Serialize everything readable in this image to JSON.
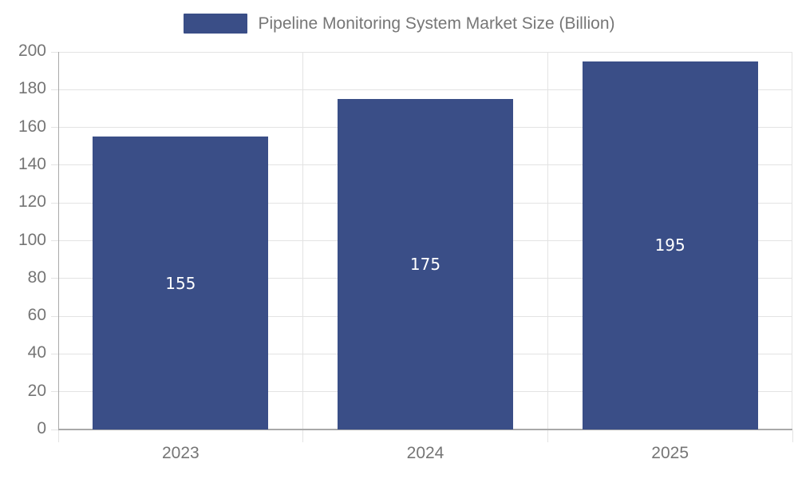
{
  "legend": {
    "label": "Pipeline Monitoring System Market Size (Billion)"
  },
  "chart_data": {
    "type": "bar",
    "title": "Pipeline Monitoring System Market Size (Billion)",
    "categories": [
      "2023",
      "2024",
      "2025"
    ],
    "values": [
      155,
      175,
      195
    ],
    "xlabel": "",
    "ylabel": "",
    "ylim": [
      0,
      200
    ],
    "ytick_step": 20,
    "yticks": [
      0,
      20,
      40,
      60,
      80,
      100,
      120,
      140,
      160,
      180,
      200
    ],
    "grid": true,
    "legend_position": "top-center",
    "value_labels_inside_bars": true,
    "colors": {
      "bar": "#3A4E87",
      "value_label": "#FFFFFF",
      "legend_text": "#767676",
      "tick_label": "#757575",
      "axis_line": "#A9A9A9",
      "grid_line": "#E3E3E3",
      "background": "#FFFFFF"
    }
  }
}
